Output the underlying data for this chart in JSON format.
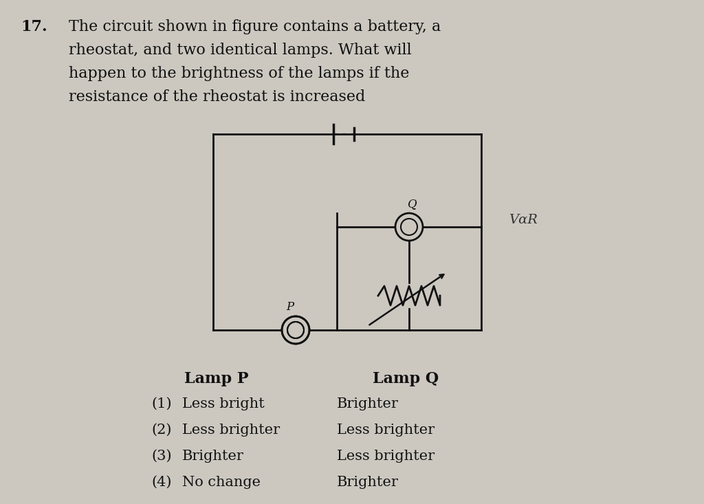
{
  "background_color": "#ccc8c0",
  "question_number": "17.",
  "question_text_line1": "The circuit shown in figure contains a battery, a",
  "question_text_line2": "rheostat, and two identical lamps. What will",
  "question_text_line3": "happen to the brightness of the lamps if the",
  "question_text_line4": "resistance of the rheostat is increased",
  "annotation": "VαR",
  "lamp_p_header": "Lamp P",
  "lamp_q_header": "Lamp Q",
  "options": [
    {
      "num": "(1)",
      "lamp_p": "Less bright",
      "lamp_q": "Brighter"
    },
    {
      "num": "(2)",
      "lamp_p": "Less brighter",
      "lamp_q": "Less brighter"
    },
    {
      "num": "(3)",
      "lamp_p": "Brighter",
      "lamp_q": "Less brighter"
    },
    {
      "num": "(4)",
      "lamp_p": "No change",
      "lamp_q": "Brighter"
    }
  ],
  "text_color": "#111111",
  "circuit_color": "#111111",
  "font_size_question": 16,
  "font_size_options": 15,
  "font_size_header": 16
}
